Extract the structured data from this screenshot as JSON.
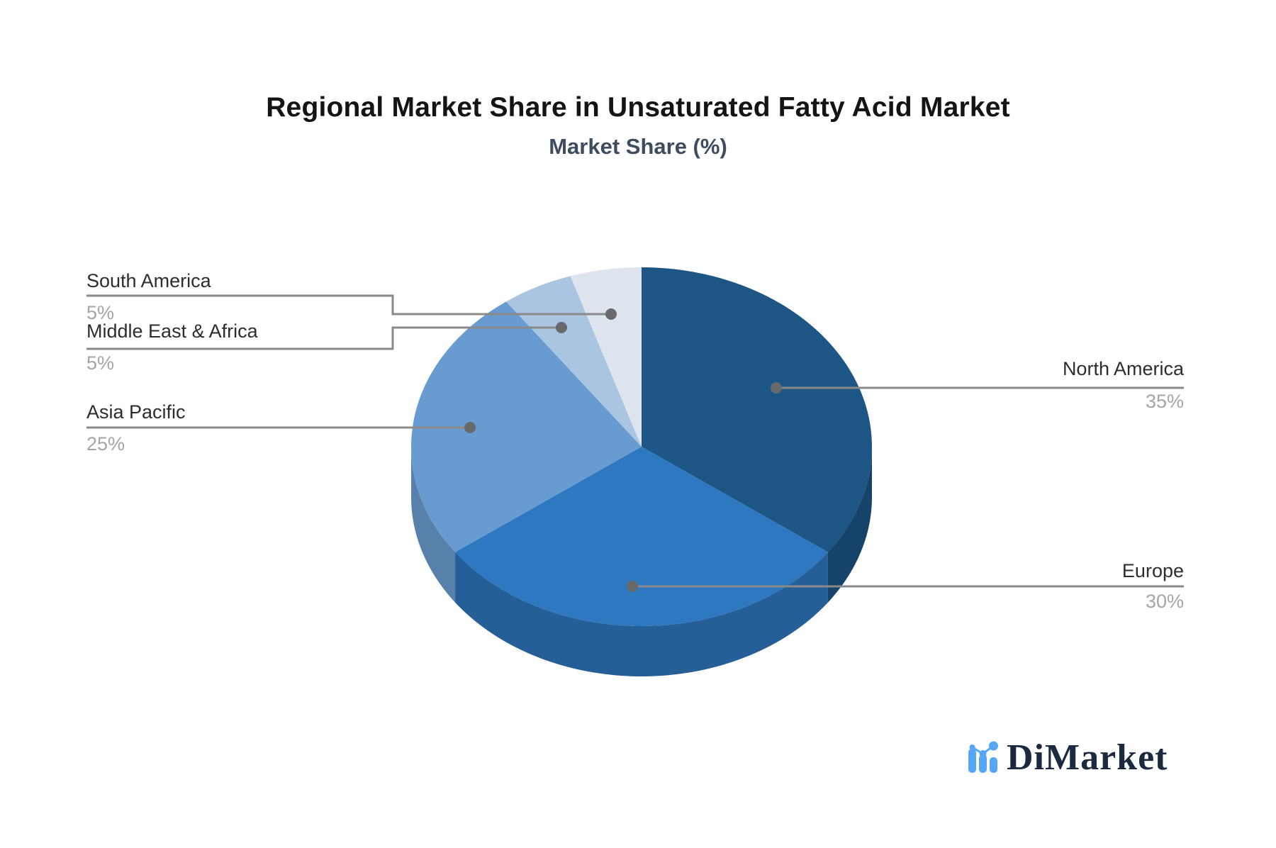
{
  "title": "Regional Market Share in Unsaturated Fatty Acid Market",
  "subtitle": "Market Share (%)",
  "brand": {
    "name": "DiMarket"
  },
  "chart_data": {
    "type": "pie",
    "style": "3d-pie",
    "title": "Regional Market Share in Unsaturated Fatty Acid Market",
    "subtitle": "Market Share (%)",
    "unit": "%",
    "start_angle_deg": 90,
    "direction": "clockwise",
    "legend_position": "callout-labels",
    "slices": [
      {
        "label": "North America",
        "value": 35,
        "value_label": "35%",
        "color": "#1d5585",
        "rim_color": "#16436a",
        "label_side": "right"
      },
      {
        "label": "Europe",
        "value": 30,
        "value_label": "30%",
        "color": "#2d78c0",
        "rim_color": "#265e97",
        "label_side": "right"
      },
      {
        "label": "Asia Pacific",
        "value": 25,
        "value_label": "25%",
        "color": "#689bd0",
        "rim_color": "#5781ab",
        "label_side": "left"
      },
      {
        "label": "Middle East & Africa",
        "value": 5,
        "value_label": "5%",
        "color": "#aac5e1",
        "rim_color": "#8aa9c9",
        "label_side": "left"
      },
      {
        "label": "South America",
        "value": 5,
        "value_label": "5%",
        "color": "#dde4ee",
        "rim_color": "#bcc7d8",
        "label_side": "left"
      }
    ],
    "callout_color": "#8a8a8a",
    "dot_color": "#67696b"
  }
}
